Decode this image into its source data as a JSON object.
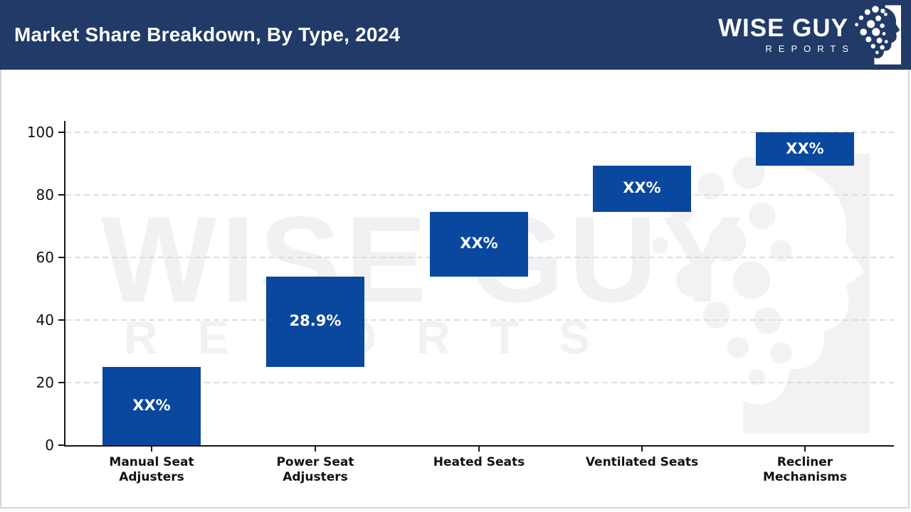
{
  "header": {
    "title": "Market Share Breakdown, By Type, 2024",
    "bg_color": "#213a67",
    "logo": {
      "line1": "WISE GUY",
      "line2": "REPORTS"
    }
  },
  "watermark": {
    "line1": "WISE GUY",
    "line2": "REPORTS"
  },
  "chart_data": {
    "type": "bar",
    "subtype": "waterfall",
    "title": "Market Share Breakdown, By Type, 2024",
    "xlabel": "",
    "ylabel": "",
    "ylim": [
      0,
      100
    ],
    "yticks": [
      0,
      20,
      40,
      60,
      80,
      100
    ],
    "grid": "dashed-horizontal",
    "legend": "none",
    "bar_color": "#0a479e",
    "label_color": "#ffffff",
    "categories": [
      "Manual Seat Adjusters",
      "Power Seat Adjusters",
      "Heated Seats",
      "Ventilated Seats",
      "Recliner Mechanisms"
    ],
    "segments": [
      {
        "category_lines": [
          "Manual Seat",
          "Adjusters"
        ],
        "start": 0,
        "end": 25,
        "label": "XX%"
      },
      {
        "category_lines": [
          "Power Seat",
          "Adjusters"
        ],
        "start": 25,
        "end": 53.9,
        "label": "28.9%"
      },
      {
        "category_lines": [
          "Heated Seats"
        ],
        "start": 53.9,
        "end": 74.6,
        "label": "XX%"
      },
      {
        "category_lines": [
          "Ventilated Seats"
        ],
        "start": 74.6,
        "end": 89.3,
        "label": "XX%"
      },
      {
        "category_lines": [
          "Recliner",
          "Mechanisms"
        ],
        "start": 89.3,
        "end": 100,
        "label": "XX%"
      }
    ]
  }
}
